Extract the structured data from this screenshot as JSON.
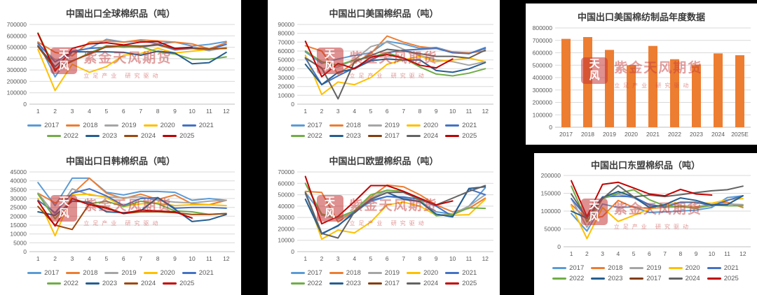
{
  "watermark": {
    "logo_top": "天",
    "logo_bottom": "风",
    "brand": "紫金天风期货",
    "slogan": "立足产业 研究驱动"
  },
  "palette": {
    "c2017": "#5B9BD5",
    "c2018": "#ED7D31",
    "c2019": "#A5A5A5",
    "c2020": "#FFC000",
    "c2021": "#4472C4",
    "c2022": "#70AD47",
    "c2023": "#255E91",
    "c2024_brown": "#9E480E",
    "c2024_gray": "#636363",
    "c2017_dup": "#843C0C",
    "c2025": "#C00000",
    "grid": "#D9D9D9",
    "axis_text": "#595959",
    "bar_orange": "#ED7D31"
  },
  "chart_data": [
    {
      "id": "global",
      "type": "line",
      "title": "中国出口全球棉织品（吨）",
      "x": [
        1,
        2,
        3,
        4,
        5,
        6,
        7,
        8,
        9,
        10,
        11,
        12
      ],
      "ylim": [
        0,
        700000
      ],
      "ytick": 100000,
      "grid": true,
      "legend_position": "bottom",
      "series": [
        {
          "name": "2017",
          "color": "#5B9BD5",
          "values": [
            545000,
            240000,
            460000,
            490000,
            570000,
            545000,
            555000,
            530000,
            545000,
            510000,
            525000,
            550000
          ]
        },
        {
          "name": "2018",
          "color": "#ED7D31",
          "values": [
            545000,
            455000,
            425000,
            545000,
            555000,
            545000,
            565000,
            555000,
            545000,
            530000,
            485000,
            540000
          ]
        },
        {
          "name": "2019",
          "color": "#A5A5A5",
          "values": [
            520000,
            390000,
            380000,
            440000,
            515000,
            505000,
            500000,
            520000,
            475000,
            490000,
            470000,
            500000
          ]
        },
        {
          "name": "2020",
          "color": "#FFC000",
          "values": [
            480000,
            120000,
            350000,
            280000,
            330000,
            430000,
            445000,
            490000,
            450000,
            465000,
            480000,
            495000
          ]
        },
        {
          "name": "2021",
          "color": "#4472C4",
          "values": [
            535000,
            370000,
            465000,
            490000,
            500000,
            505000,
            500000,
            530000,
            480000,
            490000,
            480000,
            525000
          ]
        },
        {
          "name": "2022",
          "color": "#70AD47",
          "values": [
            625000,
            310000,
            375000,
            450000,
            510000,
            500000,
            505000,
            460000,
            440000,
            395000,
            395000,
            415000
          ]
        },
        {
          "name": "2023",
          "color": "#255E91",
          "values": [
            510000,
            330000,
            460000,
            460000,
            460000,
            455000,
            430000,
            465000,
            450000,
            355000,
            365000,
            455000
          ]
        },
        {
          "name": "2024",
          "color": "#9E480E",
          "values": [
            505000,
            305000,
            380000,
            440000,
            505000,
            515000,
            510000,
            520000,
            490000,
            495000,
            485000,
            490000
          ]
        },
        {
          "name": "2025",
          "color": "#C00000",
          "values": [
            620000,
            290000,
            490000,
            530000,
            540000,
            520000,
            545000,
            550000,
            490000,
            500000
          ]
        }
      ]
    },
    {
      "id": "usa",
      "type": "line",
      "title": "中国出口美国棉织品（吨）",
      "x": [
        1,
        2,
        3,
        4,
        5,
        6,
        7,
        8,
        9,
        10,
        11,
        12
      ],
      "ylim": [
        0,
        90000
      ],
      "ytick": 10000,
      "grid": true,
      "legend_position": "bottom",
      "series": [
        {
          "name": "2017",
          "color": "#5B9BD5",
          "values": [
            59000,
            46000,
            51000,
            55000,
            58000,
            71000,
            68000,
            63000,
            64000,
            59000,
            57000,
            64000
          ]
        },
        {
          "name": "2018",
          "color": "#ED7D31",
          "values": [
            66000,
            60000,
            34000,
            47000,
            57000,
            77000,
            70000,
            65000,
            63000,
            59000,
            58000,
            60000
          ]
        },
        {
          "name": "2019",
          "color": "#A5A5A5",
          "values": [
            53000,
            40000,
            42000,
            50000,
            65000,
            70000,
            62000,
            55000,
            50000,
            48000,
            44000,
            48000
          ]
        },
        {
          "name": "2020",
          "color": "#FFC000",
          "values": [
            55000,
            11000,
            25000,
            22000,
            30000,
            45000,
            50000,
            54000,
            48000,
            50000,
            52000,
            48000
          ]
        },
        {
          "name": "2021",
          "color": "#4472C4",
          "values": [
            52000,
            22000,
            32000,
            41000,
            50000,
            58000,
            61000,
            62000,
            63000,
            58000,
            57000,
            63000
          ]
        },
        {
          "name": "2022",
          "color": "#70AD47",
          "values": [
            60000,
            48000,
            44000,
            50000,
            53000,
            58000,
            52000,
            42000,
            34000,
            32000,
            35000,
            40000
          ]
        },
        {
          "name": "2023",
          "color": "#255E91",
          "values": [
            45000,
            22000,
            36000,
            40000,
            49000,
            51000,
            50000,
            50000,
            38000,
            36000,
            40000,
            47000
          ]
        },
        {
          "name": "2017",
          "color": "#843C0C",
          "values": []
        },
        {
          "name": "2024",
          "color": "#636363",
          "values": [
            52000,
            41000,
            6000,
            48000,
            55000,
            62000,
            60000,
            57000,
            54000,
            54000,
            52000,
            61000
          ]
        },
        {
          "name": "2025",
          "color": "#C00000",
          "values": [
            71000,
            31000,
            46000,
            40000,
            53000,
            56000,
            52000,
            44000,
            41000,
            51000
          ]
        }
      ]
    },
    {
      "id": "usa_annual",
      "type": "bar",
      "title": "中国出口美国棉纺制品年度数据",
      "categories": [
        "2017",
        "2018",
        "2019",
        "2020",
        "2021",
        "2022",
        "2023",
        "2024",
        "2025E"
      ],
      "values": [
        712000,
        727000,
        623000,
        500000,
        655000,
        548000,
        505000,
        595000,
        580000
      ],
      "bar_color": "#ED7D31",
      "ylim": [
        0,
        800000
      ],
      "ytick": 100000,
      "grid": true,
      "legend_position": "none"
    },
    {
      "id": "japan_korea",
      "type": "line",
      "title": "中国出口日韩棉织品（吨）",
      "x": [
        1,
        2,
        3,
        4,
        5,
        6,
        7,
        8,
        9,
        10,
        11,
        12
      ],
      "ylim": [
        0,
        45000
      ],
      "ytick": 5000,
      "grid": true,
      "legend_position": "bottom",
      "series": [
        {
          "name": "2017",
          "color": "#5B9BD5",
          "values": [
            39000,
            26000,
            41500,
            41500,
            33500,
            32000,
            34000,
            34000,
            33500,
            29000,
            30000,
            29000
          ]
        },
        {
          "name": "2018",
          "color": "#ED7D31",
          "values": [
            33000,
            27500,
            32500,
            41500,
            33000,
            30000,
            32500,
            29500,
            32000,
            27000,
            26500,
            29000
          ]
        },
        {
          "name": "2019",
          "color": "#A5A5A5",
          "values": [
            33000,
            21000,
            35500,
            32000,
            31000,
            30500,
            31000,
            29000,
            28000,
            27500,
            28500,
            29000
          ]
        },
        {
          "name": "2020",
          "color": "#FFC000",
          "values": [
            30000,
            9000,
            32000,
            32500,
            30500,
            25500,
            27000,
            27500,
            26000,
            26500,
            26500,
            26000
          ]
        },
        {
          "name": "2021",
          "color": "#4472C4",
          "values": [
            29000,
            22000,
            33000,
            35500,
            31500,
            26000,
            30000,
            30500,
            24500,
            25000,
            25000,
            24500
          ]
        },
        {
          "name": "2022",
          "color": "#70AD47",
          "values": [
            32500,
            18500,
            30000,
            27000,
            28500,
            25500,
            28500,
            27000,
            23000,
            22500,
            21000,
            21500
          ]
        },
        {
          "name": "2023",
          "color": "#255E91",
          "values": [
            22500,
            20500,
            28500,
            28000,
            22500,
            22000,
            23000,
            30500,
            24000,
            17000,
            18000,
            21000
          ]
        },
        {
          "name": "2024",
          "color": "#9E480E",
          "values": [
            25500,
            15000,
            12500,
            27000,
            25000,
            21500,
            22500,
            22500,
            22000,
            21000,
            21000,
            21500
          ]
        },
        {
          "name": "2025",
          "color": "#C00000",
          "values": [
            28500,
            14500,
            30000,
            26500,
            24500,
            21500,
            23500,
            23000,
            22500,
            19000
          ]
        }
      ]
    },
    {
      "id": "eu",
      "type": "line",
      "title": "中国出口欧盟棉织品（吨）",
      "x": [
        1,
        2,
        3,
        4,
        5,
        6,
        7,
        8,
        9,
        10,
        11,
        12
      ],
      "ylim": [
        0,
        70000
      ],
      "ytick": 10000,
      "grid": true,
      "legend_position": "bottom",
      "series": [
        {
          "name": "2017",
          "color": "#5B9BD5",
          "values": [
            52000,
            33000,
            29000,
            35000,
            44000,
            48500,
            47000,
            44000,
            35000,
            33000,
            40000,
            56000
          ]
        },
        {
          "name": "2018",
          "color": "#ED7D31",
          "values": [
            53000,
            52000,
            26000,
            36000,
            48000,
            58500,
            57000,
            50000,
            41000,
            35000,
            38000,
            47000
          ]
        },
        {
          "name": "2019",
          "color": "#A5A5A5",
          "values": [
            60000,
            32000,
            29000,
            36000,
            47000,
            54000,
            53000,
            46000,
            32000,
            33000,
            40000,
            50000
          ]
        },
        {
          "name": "2020",
          "color": "#FFC000",
          "values": [
            52500,
            11000,
            19000,
            16500,
            26000,
            41000,
            43500,
            40000,
            32000,
            32000,
            32500,
            46000
          ]
        },
        {
          "name": "2021",
          "color": "#4472C4",
          "values": [
            51000,
            16000,
            22500,
            35500,
            45000,
            48500,
            48000,
            46000,
            40000,
            31000,
            55000,
            50000
          ]
        },
        {
          "name": "2022",
          "color": "#70AD47",
          "values": [
            60000,
            33000,
            30000,
            36000,
            50000,
            54000,
            53000,
            45000,
            31500,
            32500,
            38500,
            38000
          ]
        },
        {
          "name": "2023",
          "color": "#255E91",
          "values": [
            46000,
            15500,
            23000,
            34000,
            46000,
            52000,
            46000,
            44000,
            33000,
            30500,
            55500,
            57000
          ]
        },
        {
          "name": "2017",
          "color": "#843C0C",
          "values": []
        },
        {
          "name": "2024",
          "color": "#636363",
          "values": [
            52000,
            16000,
            12000,
            35000,
            46000,
            52000,
            52000,
            46000,
            41000,
            47000,
            53000,
            58000
          ]
        },
        {
          "name": "2025",
          "color": "#C00000",
          "values": [
            66000,
            24500,
            31000,
            44000,
            58000,
            58000,
            53000,
            47000,
            41000,
            44500
          ]
        }
      ]
    },
    {
      "id": "asean",
      "type": "line",
      "title": "中国出口东盟棉织品（吨）",
      "x": [
        1,
        2,
        3,
        4,
        5,
        6,
        7,
        8,
        9,
        10,
        11,
        12
      ],
      "ylim": [
        0,
        200000
      ],
      "ytick": 50000,
      "grid": true,
      "legend_position": "bottom",
      "series": [
        {
          "name": "2017",
          "color": "#5B9BD5",
          "values": [
            93000,
            44000,
            120000,
            110000,
            112000,
            96000,
            98000,
            100000,
            103000,
            110000,
            138000,
            143000
          ]
        },
        {
          "name": "2018",
          "color": "#ED7D31",
          "values": [
            118000,
            78000,
            85000,
            130000,
            110000,
            108000,
            110000,
            115000,
            112000,
            118000,
            125000,
            110000
          ]
        },
        {
          "name": "2019",
          "color": "#A5A5A5",
          "values": [
            135000,
            55000,
            135000,
            148000,
            137000,
            115000,
            110000,
            112000,
            110000,
            115000,
            120000,
            118000
          ]
        },
        {
          "name": "2020",
          "color": "#FFC000",
          "values": [
            115000,
            23000,
            110000,
            71000,
            88000,
            105000,
            118000,
            125000,
            123000,
            122000,
            132000,
            135000
          ]
        },
        {
          "name": "2021",
          "color": "#4472C4",
          "values": [
            135000,
            82000,
            140000,
            142000,
            140000,
            118000,
            112000,
            125000,
            125000,
            115000,
            130000,
            143000
          ]
        },
        {
          "name": "2022",
          "color": "#70AD47",
          "values": [
            170000,
            70000,
            135000,
            150000,
            160000,
            132000,
            115000,
            112000,
            108000,
            117000,
            115000,
            115000
          ]
        },
        {
          "name": "2023",
          "color": "#255E91",
          "values": [
            100000,
            80000,
            138000,
            155000,
            140000,
            110000,
            118000,
            137000,
            130000,
            117000,
            118000,
            143000
          ]
        },
        {
          "name": "2017",
          "color": "#843C0C",
          "values": []
        },
        {
          "name": "2024",
          "color": "#636363",
          "values": [
            148000,
            80000,
            135000,
            172000,
            140000,
            145000,
            141000,
            146000,
            152000,
            157000,
            160000,
            170000
          ]
        },
        {
          "name": "2025",
          "color": "#C00000",
          "values": [
            185000,
            85000,
            175000,
            181000,
            165000,
            148000,
            143000,
            161000,
            148000,
            145000
          ]
        }
      ]
    }
  ]
}
